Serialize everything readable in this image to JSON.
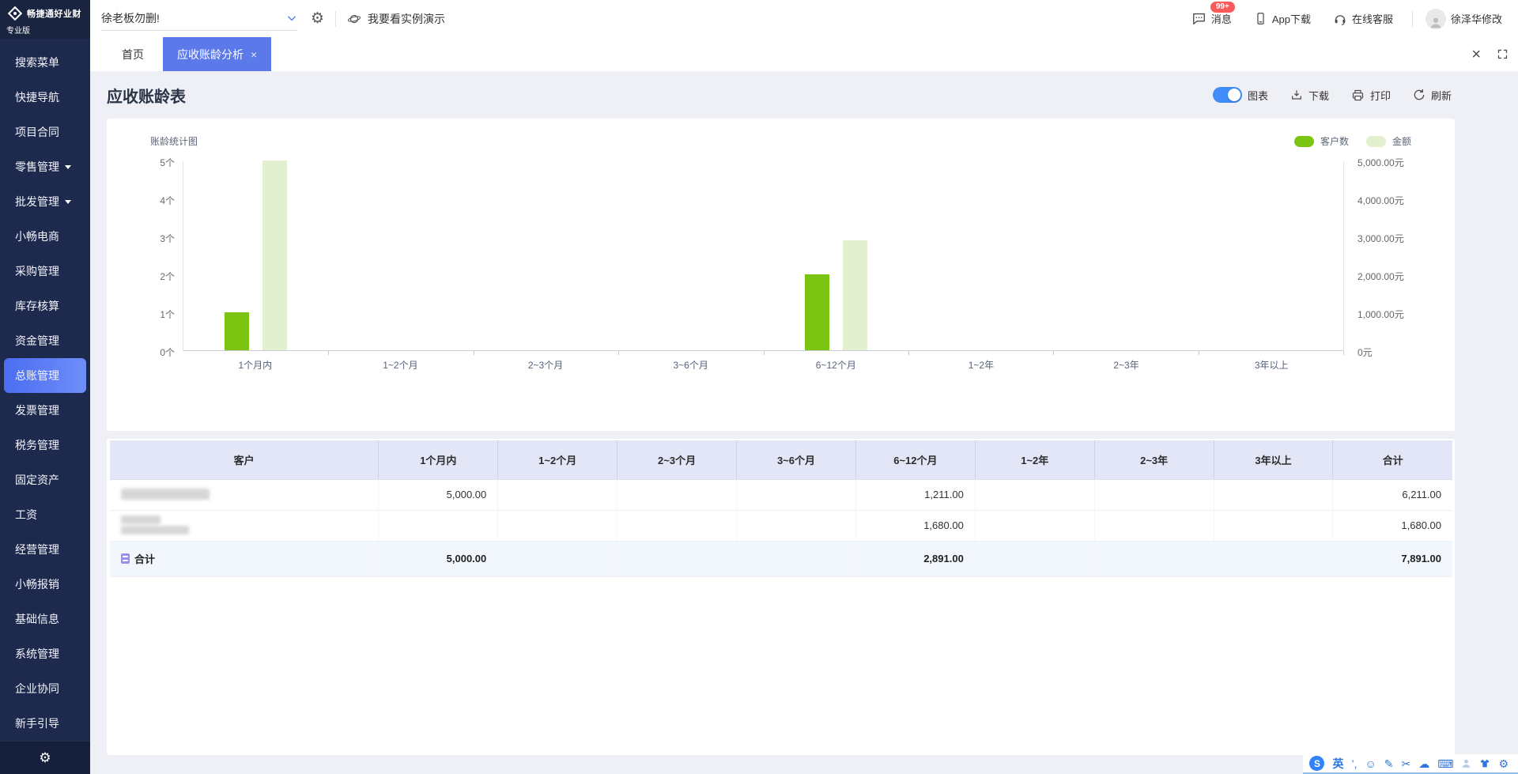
{
  "brand": {
    "name": "畅捷通好业财",
    "edition": "专业版"
  },
  "sidebar": {
    "items": [
      {
        "label": "搜索菜单"
      },
      {
        "label": "快捷导航"
      },
      {
        "label": "项目合同"
      },
      {
        "label": "零售管理",
        "arrow": true
      },
      {
        "label": "批发管理",
        "arrow": true
      },
      {
        "label": "小畅电商"
      },
      {
        "label": "采购管理"
      },
      {
        "label": "库存核算"
      },
      {
        "label": "资金管理"
      },
      {
        "label": "总账管理",
        "active": true
      },
      {
        "label": "发票管理"
      },
      {
        "label": "税务管理"
      },
      {
        "label": "固定资产"
      },
      {
        "label": "工资"
      },
      {
        "label": "经营管理"
      },
      {
        "label": "小畅报销"
      },
      {
        "label": "基础信息"
      },
      {
        "label": "系统管理"
      },
      {
        "label": "企业协同"
      },
      {
        "label": "新手引导"
      }
    ]
  },
  "topbar": {
    "account_selector": "徐老板勿删!",
    "demo_link": "我要看实例演示",
    "messages_label": "消息",
    "messages_badge": "99+",
    "app_download_label": "App下载",
    "support_label": "在线客服",
    "user_name": "徐泽华修改"
  },
  "tabs": [
    {
      "label": "首页",
      "active": false,
      "closable": false
    },
    {
      "label": "应收账龄分析",
      "active": true,
      "closable": true
    }
  ],
  "page": {
    "title": "应收账龄表",
    "toolbar": {
      "chart_toggle_label": "图表",
      "toggle_on": true,
      "download_label": "下载",
      "print_label": "打印",
      "refresh_label": "刷新"
    }
  },
  "chart_data": {
    "type": "bar",
    "title": "账龄统计图",
    "categories": [
      "1个月内",
      "1~2个月",
      "2~3个月",
      "3~6个月",
      "6~12个月",
      "1~2年",
      "2~3年",
      "3年以上"
    ],
    "series": [
      {
        "name": "客户数",
        "axis": "left",
        "color": "#7cc412",
        "values": [
          1,
          0,
          0,
          0,
          2,
          0,
          0,
          0
        ]
      },
      {
        "name": "金额",
        "axis": "right",
        "color": "#e3f0cf",
        "values": [
          5000,
          0,
          0,
          0,
          2891,
          0,
          0,
          0
        ]
      }
    ],
    "left_axis": {
      "max": 5,
      "ticks": [
        "5个",
        "4个",
        "3个",
        "2个",
        "1个",
        "0个"
      ]
    },
    "right_axis": {
      "max": 5000,
      "ticks": [
        "5,000.00元",
        "4,000.00元",
        "3,000.00元",
        "2,000.00元",
        "1,000.00元",
        "0元"
      ]
    },
    "legend_position": "top-right",
    "grid": false
  },
  "table": {
    "columns": [
      "客户",
      "1个月内",
      "1~2个月",
      "2~3个月",
      "3~6个月",
      "6~12个月",
      "1~2年",
      "2~3年",
      "3年以上",
      "合计"
    ],
    "rows": [
      {
        "customer_redacted": true,
        "values": [
          "5,000.00",
          "",
          "",
          "",
          "1,211.00",
          "",
          "",
          "",
          "6,211.00"
        ]
      },
      {
        "customer_redacted": true,
        "values": [
          "",
          "",
          "",
          "",
          "1,680.00",
          "",
          "",
          "",
          "1,680.00"
        ]
      }
    ],
    "total_row": {
      "label": "合计",
      "values": [
        "5,000.00",
        "",
        "",
        "",
        "2,891.00",
        "",
        "",
        "",
        "7,891.00"
      ]
    }
  },
  "ime_toolbar": {
    "lang": "英",
    "icons": [
      {
        "name": "punctuation-icon",
        "glyph": "’,"
      },
      {
        "name": "emoji-icon",
        "glyph": "☺"
      },
      {
        "name": "pencil-icon",
        "glyph": "✎"
      },
      {
        "name": "scissors-icon",
        "glyph": "✂"
      },
      {
        "name": "cloud-icon",
        "glyph": "☁"
      },
      {
        "name": "keyboard-icon",
        "glyph": "⌨"
      },
      {
        "name": "user-icon",
        "glyph": ""
      },
      {
        "name": "shirt-icon",
        "glyph": ""
      },
      {
        "name": "settings-icon",
        "glyph": "⚙"
      }
    ]
  },
  "colors": {
    "accent_blue": "#5b79e9",
    "toggle_blue": "#3f8df8",
    "series_green": "#7cc412",
    "series_light_green": "#e3f0cf",
    "badge_red": "#fa5a5a",
    "sidebar_bg": "#1d2a4e",
    "table_header_bg": "#e3e6f6",
    "total_row_bg": "#f2f7fd"
  }
}
